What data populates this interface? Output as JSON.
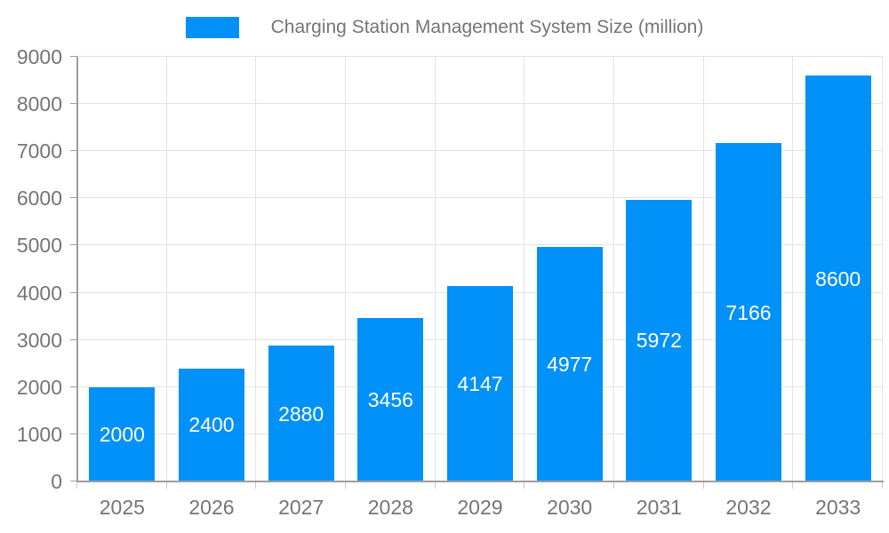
{
  "legend": {
    "label": "Charging Station Management System Size (million)"
  },
  "colors": {
    "bar": "#0191F8",
    "bar_label": "#FFFFFF",
    "grid": "#E3E3E3",
    "axis": "#9E9E9E",
    "tick": "#C9C9C9",
    "text": "#757575",
    "background": "#FFFFFF"
  },
  "chart_data": {
    "type": "bar",
    "title": "Charging Station Management System Size (million)",
    "categories": [
      "2025",
      "2026",
      "2027",
      "2028",
      "2029",
      "2030",
      "2031",
      "2032",
      "2033"
    ],
    "values": [
      2000,
      2400,
      2880,
      3456,
      4147,
      4977,
      5972,
      7166,
      8600
    ],
    "xlabel": "",
    "ylabel": "",
    "ylim": [
      0,
      9000
    ],
    "yticks": [
      0,
      1000,
      2000,
      3000,
      4000,
      5000,
      6000,
      7000,
      8000,
      9000
    ],
    "grid": true,
    "legend_position": "top",
    "bar_value_labels": "inside-center-white"
  }
}
